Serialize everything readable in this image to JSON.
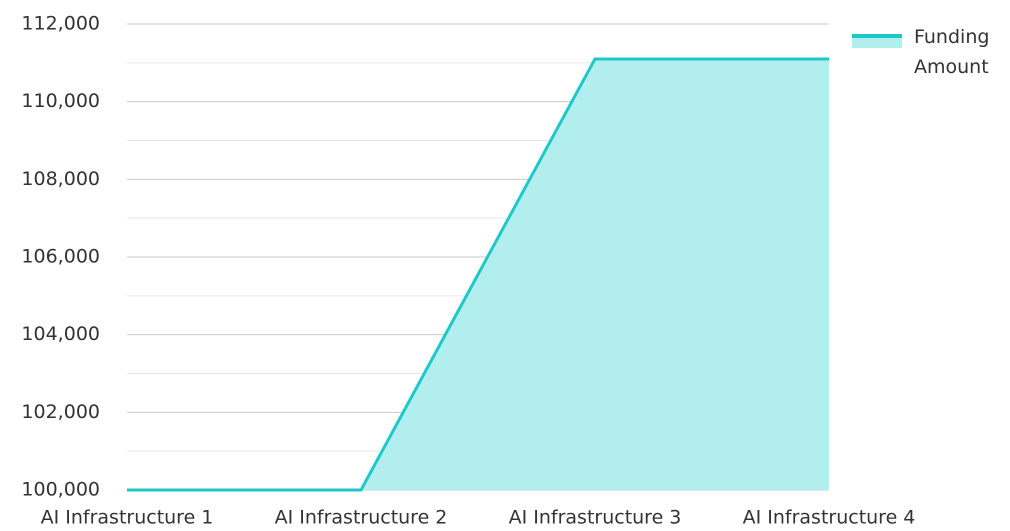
{
  "chart_data": {
    "type": "area",
    "categories": [
      "AI Infrastructure 1",
      "AI Infrastructure 2",
      "AI Infrastructure 3",
      "AI Infrastructure 4"
    ],
    "series": [
      {
        "name": "Funding Amount",
        "color": "#1ec8c8",
        "fill": "#b2eeee",
        "values": [
          100000,
          100000,
          111100,
          111100
        ]
      }
    ],
    "ylim": [
      100000,
      112000
    ],
    "yticks": [
      {
        "value": 100000,
        "label": "100,000"
      },
      {
        "value": 102000,
        "label": "102,000"
      },
      {
        "value": 104000,
        "label": "104,000"
      },
      {
        "value": 106000,
        "label": "106,000"
      },
      {
        "value": 108000,
        "label": "108,000"
      },
      {
        "value": 110000,
        "label": "110,000"
      },
      {
        "value": 112000,
        "label": "112,000"
      }
    ],
    "minor_yticks": [
      101000,
      103000,
      105000,
      107000,
      109000,
      111000
    ],
    "grid": true,
    "legend": "right"
  }
}
